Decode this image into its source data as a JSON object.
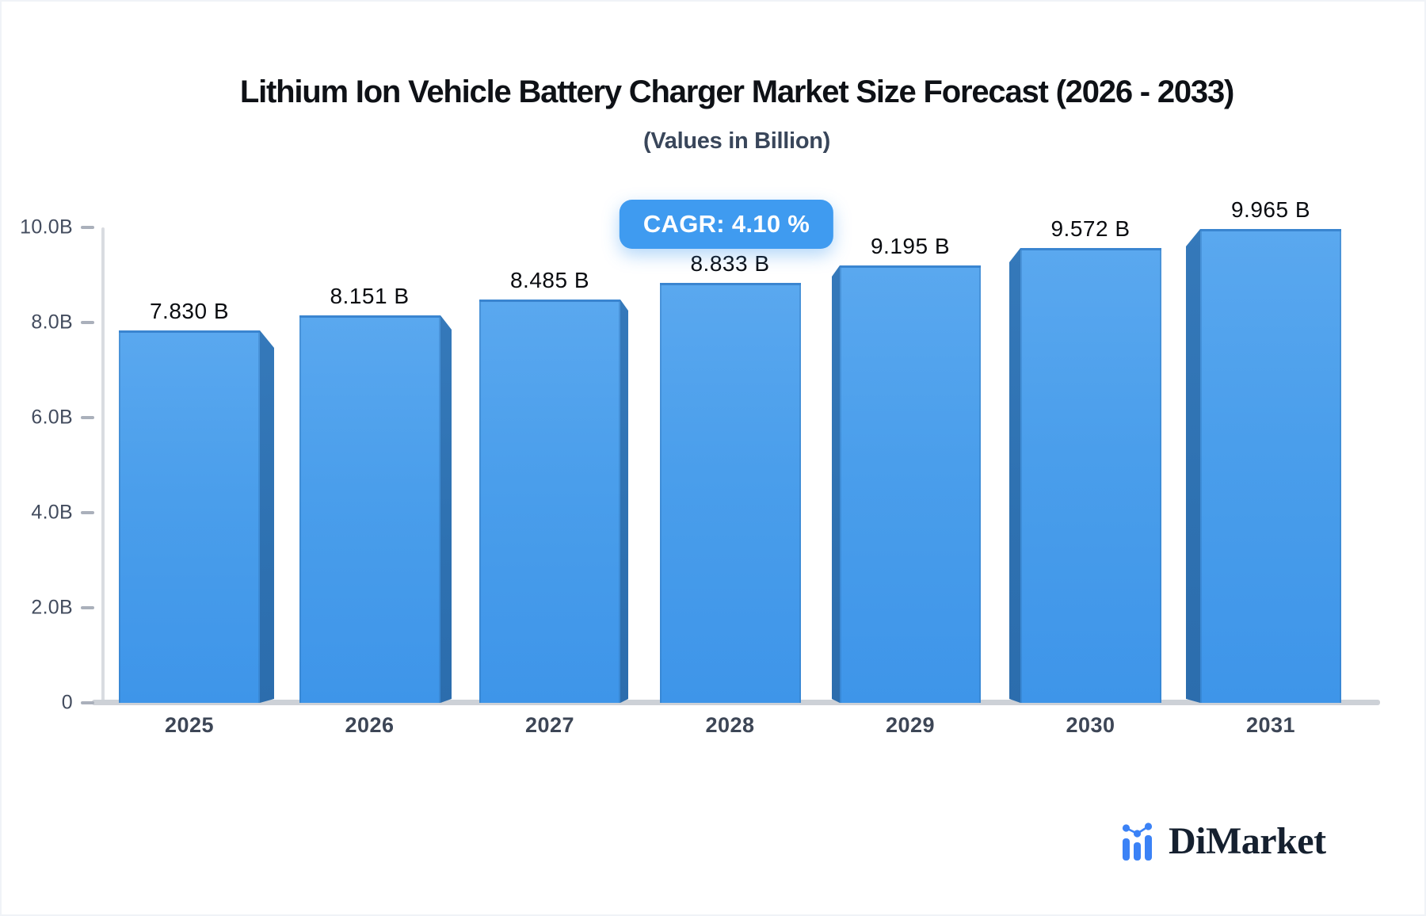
{
  "header": {
    "title": "Lithium Ion Vehicle Battery Charger Market Size Forecast (2026 - 2033)",
    "subtitle": "(Values in Billion)"
  },
  "cagr_badge": {
    "label": "CAGR: 4.10 %"
  },
  "chart_data": {
    "type": "bar",
    "title": "Lithium Ion Vehicle Battery Charger Market Size Forecast (2026 - 2033)",
    "subtitle": "(Values in Billion)",
    "unit": "Billion",
    "cagr_percent": 4.1,
    "categories": [
      "2025",
      "2026",
      "2027",
      "2028",
      "2029",
      "2030",
      "2031"
    ],
    "values": [
      7.83,
      8.151,
      8.485,
      8.833,
      9.195,
      9.572,
      9.965
    ],
    "value_labels": [
      "7.830 B",
      "8.151 B",
      "8.485 B",
      "8.833 B",
      "9.195 B",
      "9.572 B",
      "9.965 B"
    ],
    "ylim": [
      0,
      10
    ],
    "y_ticks": [
      {
        "value": 0,
        "label": "0"
      },
      {
        "value": 2,
        "label": "2.0B"
      },
      {
        "value": 4,
        "label": "4.0B"
      },
      {
        "value": 6,
        "label": "6.0B"
      },
      {
        "value": 8,
        "label": "8.0B"
      },
      {
        "value": 10,
        "label": "10.0B"
      }
    ],
    "grid": false,
    "legend": "none",
    "style": "3d-perspective-bars",
    "colors": {
      "bar_face_top": "#5aa8ef",
      "bar_face_bottom": "#3e95e9",
      "bar_side": "#2e71b1",
      "badge_background": "#3f9bf0",
      "badge_text": "#ffffff",
      "axis_text": "#434c5e",
      "value_label_text": "#0a0c10",
      "axis_line": "#d9dce1",
      "baseline": "#cdd1d7"
    }
  },
  "logo": {
    "text": "DiMarket",
    "icon": "bar-chart-logo-icon",
    "icon_color": "#3b82f6",
    "text_color": "#15202f"
  }
}
